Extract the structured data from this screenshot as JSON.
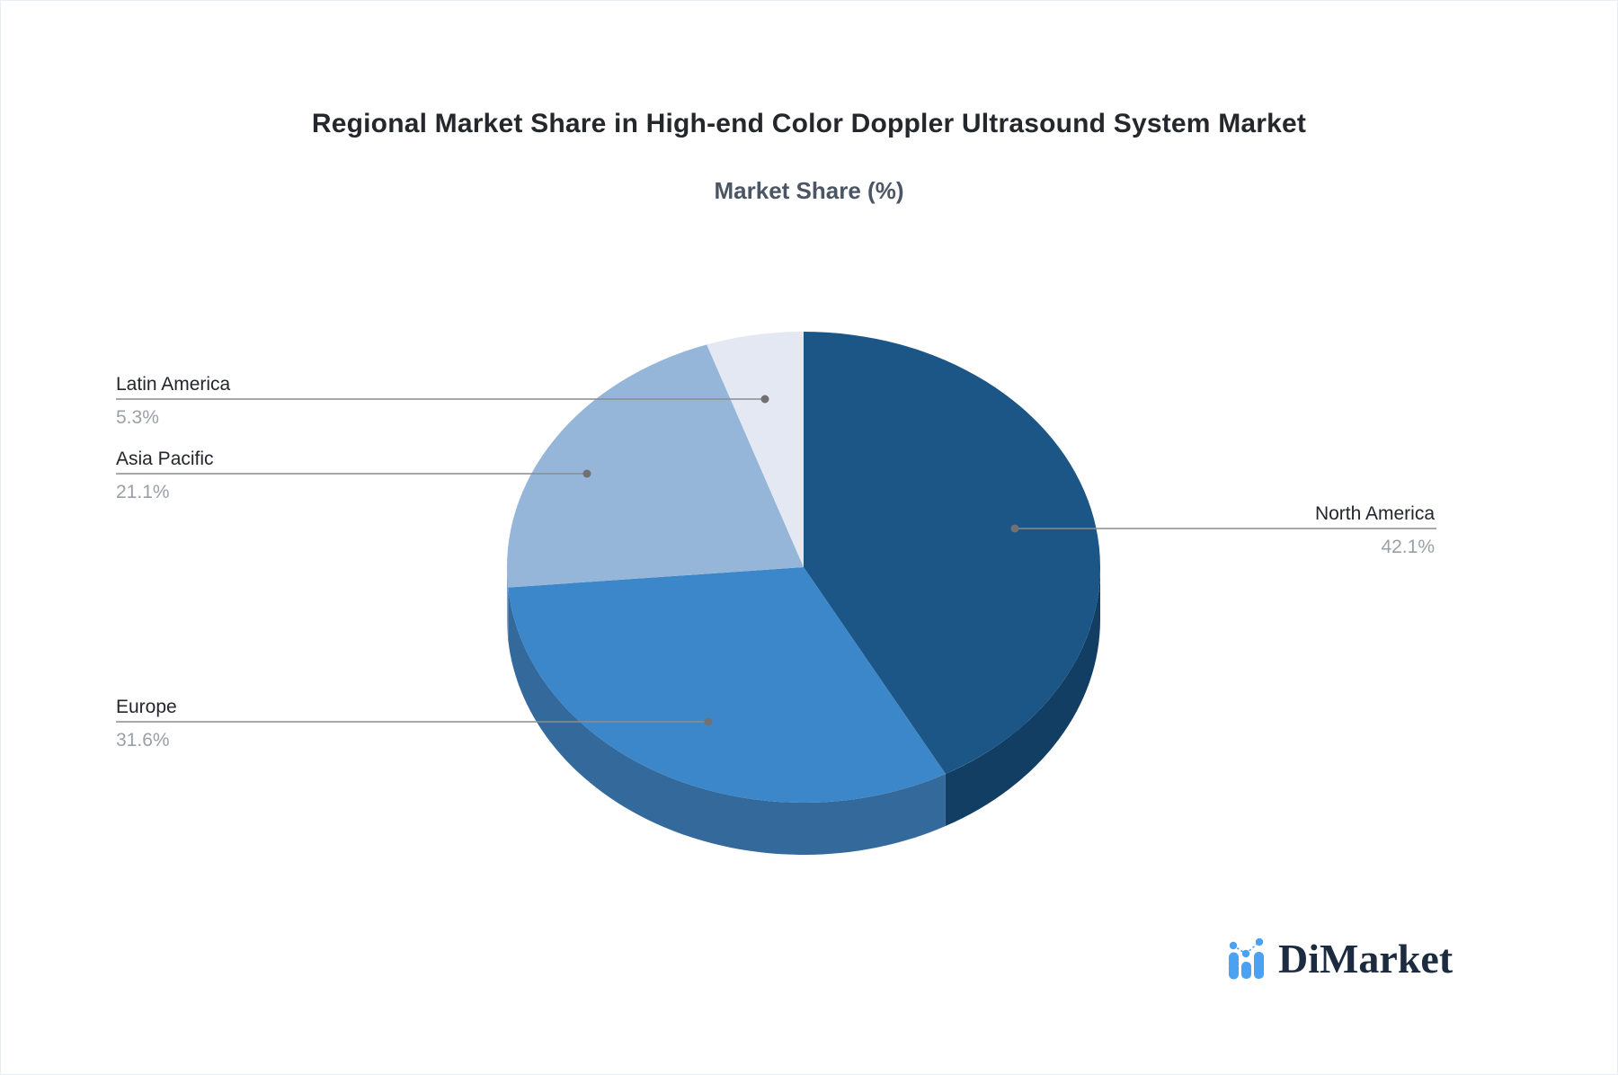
{
  "header": {
    "title": "Regional Market Share in High-end Color Doppler Ultrasound System Market",
    "subtitle": "Market Share (%)"
  },
  "chart_data": {
    "type": "pie",
    "title": "Regional Market Share in High-end Color Doppler Ultrasound System Market",
    "subtitle": "Market Share (%)",
    "unit": "%",
    "effect": "3d",
    "start_angle_deg": 0,
    "direction": "clockwise",
    "legend_position": "none",
    "slices": [
      {
        "label": "North America",
        "value": 42.1,
        "display": "42.1%",
        "color": "#1b5687",
        "side_color": "#133e63"
      },
      {
        "label": "Europe",
        "value": 31.6,
        "display": "31.6%",
        "color": "#3c87c9",
        "side_color": "#34699c"
      },
      {
        "label": "Asia Pacific",
        "value": 21.1,
        "display": "21.1%",
        "color": "#95b5d9",
        "side_color": "#7fa0c4"
      },
      {
        "label": "Latin America",
        "value": 5.3,
        "display": "5.3%",
        "color": "#e3e8f2",
        "side_color": "#c8d2e2"
      }
    ]
  },
  "leader": {
    "line_color": "#8c8c8c",
    "dot_color": "#717171"
  },
  "branding": {
    "name": "DiMarket",
    "icon": "mini-bar-chart-icon",
    "icon_color": "#4ba2f2",
    "text_color": "#1c2b40"
  }
}
